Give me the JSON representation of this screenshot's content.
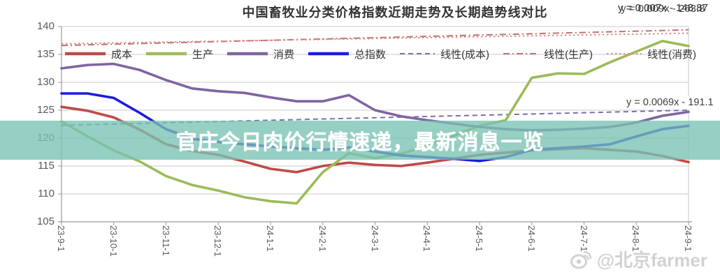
{
  "title": "中国畜牧业分类价格指数近期走势及长期趋势线对比",
  "overlay_banner": {
    "text": "官庄今日肉价行情速递，最新消息一览"
  },
  "watermark": {
    "icon": "weibo-icon",
    "text": "@北京farmer"
  },
  "equations": {
    "top_right_overlap": [
      "y = 0.007x - 148.87",
      "y = 0.009x - 263.8"
    ],
    "mid_right": "y = 0.0069x - 191.1"
  },
  "chart_data": {
    "type": "line",
    "title": "中国畜牧业分类价格指数近期走势及长期趋势线对比",
    "xlabel": "",
    "ylabel": "",
    "ylim": [
      105,
      140
    ],
    "y_ticks": [
      105,
      110,
      115,
      120,
      125,
      130,
      135,
      140
    ],
    "x_tick_labels": [
      "23-9-1",
      "23-10-1",
      "23-11-1",
      "23-12-1",
      "24-1-1",
      "24-2-1",
      "24-3-1",
      "24-4-1",
      "24-5-1",
      "24-6-1",
      "24-7-1",
      "24-8-1",
      "24-9-1"
    ],
    "x_step_months": 0.5,
    "grid": true,
    "legend_position": "top",
    "series": [
      {
        "name": "成本",
        "color": "#BE4B48",
        "style": "solid",
        "values": [
          125.6,
          124.9,
          123.7,
          121.5,
          118.9,
          117.7,
          117.0,
          115.8,
          114.5,
          113.9,
          115.0,
          115.6,
          115.2,
          115.0,
          115.6,
          116.3,
          117.0,
          117.4,
          117.8,
          118.0,
          118.2,
          117.9,
          117.6,
          116.8,
          115.7
        ]
      },
      {
        "name": "生产",
        "color": "#9BBB59",
        "style": "solid",
        "values": [
          123.0,
          120.3,
          117.8,
          115.8,
          113.2,
          111.6,
          110.6,
          109.4,
          108.7,
          108.3,
          113.9,
          117.3,
          116.4,
          117.2,
          118.6,
          120.4,
          122.2,
          123.2,
          130.8,
          131.6,
          131.5,
          133.6,
          135.5,
          137.4,
          136.5
        ]
      },
      {
        "name": "消费",
        "color": "#8064A2",
        "style": "solid",
        "values": [
          132.5,
          133.1,
          133.3,
          132.2,
          130.4,
          128.9,
          128.4,
          128.1,
          127.3,
          126.6,
          126.6,
          127.7,
          125.0,
          123.9,
          123.2,
          122.6,
          122.0,
          121.6,
          121.4,
          121.5,
          121.7,
          122.0,
          122.8,
          124.0,
          124.7
        ]
      },
      {
        "name": "总指数",
        "color": "#1C1CDB",
        "style": "solid",
        "values": [
          128.0,
          128.0,
          127.2,
          124.5,
          121.6,
          119.9,
          119.3,
          118.9,
          118.5,
          118.2,
          117.9,
          118.3,
          117.6,
          116.9,
          116.6,
          116.3,
          115.9,
          116.6,
          117.9,
          118.2,
          118.5,
          118.9,
          120.3,
          121.6,
          122.2
        ]
      },
      {
        "name": "线性(成本)",
        "color": "#7272AE",
        "style": "dashed",
        "trend": [
          122.3,
          125.0
        ]
      },
      {
        "name": "线性(生产)",
        "color": "#C0706C",
        "style": "dashdot",
        "trend": [
          136.6,
          139.4
        ]
      },
      {
        "name": "线性(消费)",
        "color": "#D98F8C",
        "style": "dotted",
        "trend": [
          136.9,
          138.8
        ]
      }
    ]
  }
}
